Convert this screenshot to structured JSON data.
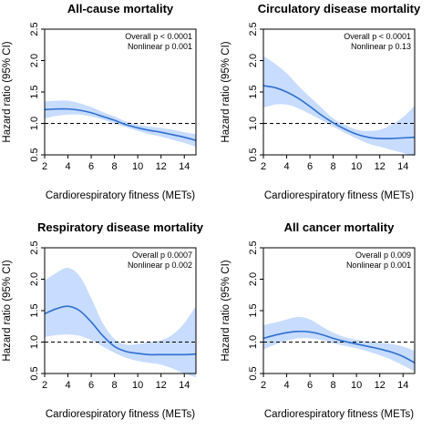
{
  "chart_data": [
    {
      "type": "line",
      "title": "All-cause mortality",
      "xlabel": "Cardiorespiratory fitness (METs)",
      "ylabel": "Hazard ratio (95% CI)",
      "xlim": [
        2,
        15
      ],
      "ylim": [
        0.5,
        2.5
      ],
      "xticks": [
        "2",
        "4",
        "6",
        "8",
        "10",
        "12",
        "14"
      ],
      "yticks": [
        "0.5",
        "1.0",
        "1.5",
        "2.0",
        "2.5"
      ],
      "reference_line": 1.0,
      "annotations": [
        "Overall p < 0.0001",
        "Nonlinear p 0.001"
      ],
      "x": [
        2,
        3,
        4,
        5,
        6,
        7,
        8,
        9,
        10,
        11,
        12,
        13,
        14,
        15
      ],
      "estimate": [
        1.22,
        1.23,
        1.23,
        1.21,
        1.17,
        1.11,
        1.05,
        0.98,
        0.93,
        0.89,
        0.86,
        0.82,
        0.78,
        0.73
      ],
      "lower": [
        1.08,
        1.12,
        1.14,
        1.14,
        1.11,
        1.06,
        1.0,
        0.94,
        0.88,
        0.83,
        0.79,
        0.74,
        0.69,
        0.63
      ],
      "upper": [
        1.35,
        1.36,
        1.36,
        1.32,
        1.26,
        1.18,
        1.11,
        1.03,
        0.98,
        0.95,
        0.93,
        0.9,
        0.86,
        0.83
      ]
    },
    {
      "type": "line",
      "title": "Circulatory disease mortality",
      "xlabel": "Cardiorespiratory fitness (METs)",
      "ylabel": "Hazard ratio (95% CI)",
      "xlim": [
        2,
        15
      ],
      "ylim": [
        0.5,
        2.5
      ],
      "xticks": [
        "2",
        "4",
        "6",
        "8",
        "10",
        "12",
        "14"
      ],
      "yticks": [
        "0.5",
        "1.0",
        "1.5",
        "2.0",
        "2.5"
      ],
      "reference_line": 1.0,
      "annotations": [
        "Overall p < 0.0001",
        "Nonlinear p 0.13"
      ],
      "x": [
        2,
        3,
        4,
        5,
        6,
        7,
        8,
        9,
        10,
        11,
        12,
        13,
        14,
        15
      ],
      "estimate": [
        1.6,
        1.57,
        1.5,
        1.4,
        1.27,
        1.13,
        1.01,
        0.91,
        0.83,
        0.78,
        0.76,
        0.76,
        0.77,
        0.78
      ],
      "lower": [
        1.25,
        1.3,
        1.3,
        1.24,
        1.15,
        1.05,
        0.95,
        0.85,
        0.76,
        0.68,
        0.63,
        0.58,
        0.53,
        0.48
      ],
      "upper": [
        2.07,
        1.95,
        1.8,
        1.6,
        1.42,
        1.25,
        1.08,
        0.98,
        0.9,
        0.88,
        0.9,
        0.98,
        1.1,
        1.28
      ]
    },
    {
      "type": "line",
      "title": "Respiratory disease mortality",
      "xlabel": "Cardiorespiratory fitness (METs)",
      "ylabel": "Hazard ratio (95% CI)",
      "xlim": [
        2,
        15
      ],
      "ylim": [
        0.5,
        2.5
      ],
      "xticks": [
        "2",
        "4",
        "6",
        "8",
        "10",
        "12",
        "14"
      ],
      "yticks": [
        "0.5",
        "1.0",
        "1.5",
        "2.0",
        "2.5"
      ],
      "reference_line": 1.0,
      "annotations": [
        "Overall p 0.0007",
        "Nonlinear p 0.002"
      ],
      "x": [
        2,
        3,
        4,
        5,
        6,
        7,
        8,
        9,
        10,
        11,
        12,
        13,
        14,
        15
      ],
      "estimate": [
        1.45,
        1.53,
        1.57,
        1.5,
        1.32,
        1.1,
        0.93,
        0.85,
        0.82,
        0.8,
        0.8,
        0.8,
        0.8,
        0.81
      ],
      "lower": [
        1.08,
        1.11,
        1.12,
        1.1,
        1.03,
        0.93,
        0.83,
        0.75,
        0.7,
        0.67,
        0.64,
        0.58,
        0.5,
        0.44
      ],
      "upper": [
        1.98,
        2.1,
        2.18,
        2.05,
        1.7,
        1.3,
        1.05,
        0.96,
        0.97,
        1.0,
        1.03,
        1.12,
        1.3,
        1.57
      ]
    },
    {
      "type": "line",
      "title": "All cancer mortality",
      "xlabel": "Cardiorespiratory fitness (METs)",
      "ylabel": "Hazard ratio (95% CI)",
      "xlim": [
        2,
        15
      ],
      "ylim": [
        0.5,
        2.5
      ],
      "xticks": [
        "2",
        "4",
        "6",
        "8",
        "10",
        "12",
        "14"
      ],
      "yticks": [
        "0.5",
        "1.0",
        "1.5",
        "2.0",
        "2.5"
      ],
      "reference_line": 1.0,
      "annotations": [
        "Overall p 0.009",
        "Nonlinear p 0.001"
      ],
      "x": [
        2,
        3,
        4,
        5,
        6,
        7,
        8,
        9,
        10,
        11,
        12,
        13,
        14,
        15
      ],
      "estimate": [
        1.06,
        1.11,
        1.15,
        1.17,
        1.16,
        1.12,
        1.06,
        1.01,
        0.97,
        0.93,
        0.89,
        0.84,
        0.77,
        0.67
      ],
      "lower": [
        0.88,
        0.96,
        1.02,
        1.06,
        1.06,
        1.03,
        0.98,
        0.94,
        0.9,
        0.85,
        0.79,
        0.72,
        0.63,
        0.53
      ],
      "upper": [
        1.27,
        1.31,
        1.36,
        1.4,
        1.36,
        1.25,
        1.15,
        1.08,
        1.04,
        1.01,
        0.99,
        0.97,
        0.93,
        0.86
      ]
    }
  ],
  "colors": {
    "band": "#c8dcff",
    "line": "#2e6fcf",
    "reference": "#000000",
    "axis": "#000000"
  }
}
